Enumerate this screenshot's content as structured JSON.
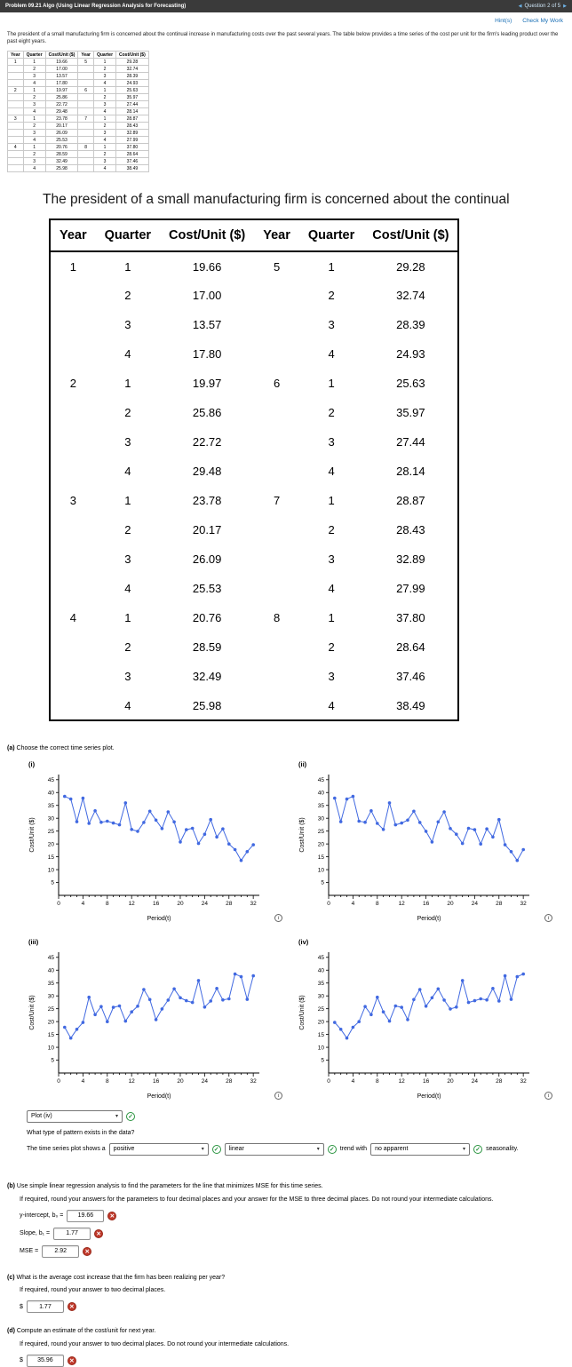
{
  "header": {
    "title": "Problem 09.21 Algo (Using Linear Regression Analysis for Forecasting)",
    "pager_prev": "◀",
    "pager_label": "Question 2 of 5",
    "pager_next": "▶"
  },
  "toolbar": {
    "hints_label": "Hint(s)",
    "check_label": "Check My Work"
  },
  "intro_text": "The president of a small manufacturing firm is concerned about the continual increase in manufacturing costs over the past several years. The table below provides a time series of the cost per unit for the firm's leading product over the past eight years.",
  "zoom_heading": "The president of a small manufacturing firm is concerned about the continual",
  "table": {
    "headers": [
      "Year",
      "Quarter",
      "Cost/Unit ($)",
      "Year",
      "Quarter",
      "Cost/Unit ($)"
    ],
    "rows": [
      [
        "1",
        "1",
        "19.66",
        "5",
        "1",
        "29.28"
      ],
      [
        "",
        "2",
        "17.00",
        "",
        "2",
        "32.74"
      ],
      [
        "",
        "3",
        "13.57",
        "",
        "3",
        "28.39"
      ],
      [
        "",
        "4",
        "17.80",
        "",
        "4",
        "24.93"
      ],
      [
        "2",
        "1",
        "19.97",
        "6",
        "1",
        "25.63"
      ],
      [
        "",
        "2",
        "25.86",
        "",
        "2",
        "35.97"
      ],
      [
        "",
        "3",
        "22.72",
        "",
        "3",
        "27.44"
      ],
      [
        "",
        "4",
        "29.48",
        "",
        "4",
        "28.14"
      ],
      [
        "3",
        "1",
        "23.78",
        "7",
        "1",
        "28.87"
      ],
      [
        "",
        "2",
        "20.17",
        "",
        "2",
        "28.43"
      ],
      [
        "",
        "3",
        "26.09",
        "",
        "3",
        "32.89"
      ],
      [
        "",
        "4",
        "25.53",
        "",
        "4",
        "27.99"
      ],
      [
        "4",
        "1",
        "20.76",
        "8",
        "1",
        "37.80"
      ],
      [
        "",
        "2",
        "28.59",
        "",
        "2",
        "28.64"
      ],
      [
        "",
        "3",
        "32.49",
        "",
        "3",
        "37.46"
      ],
      [
        "",
        "4",
        "25.98",
        "",
        "4",
        "38.49"
      ]
    ]
  },
  "part_a": {
    "label": "(a)",
    "prompt": "Choose the correct time series plot.",
    "answer_dropdown": "Plot (iv)",
    "pattern_question": "What type of pattern exists in the data?",
    "sentence_prefix": "The time series plot shows a",
    "dropdown_1": "positive",
    "dropdown_2": "linear",
    "sentence_mid": "trend with",
    "dropdown_3": "no apparent",
    "sentence_suffix": "seasonality."
  },
  "chart_data": {
    "type": "line",
    "xlabel": "Period(t)",
    "ylabel": "Cost/Unit ($)",
    "x_start": 1,
    "x_ticks": [
      0,
      4,
      8,
      12,
      16,
      20,
      24,
      28,
      32
    ],
    "y_ticks": [
      5,
      10,
      15,
      20,
      25,
      30,
      35,
      40,
      45
    ],
    "xlim": [
      0,
      33
    ],
    "ylim": [
      0,
      47
    ],
    "line_color": "#4169e1",
    "plots": [
      {
        "label": "(i)",
        "values": [
          38.49,
          37.46,
          28.64,
          37.8,
          27.99,
          32.89,
          28.43,
          28.87,
          28.14,
          27.44,
          35.97,
          25.63,
          24.93,
          28.39,
          32.74,
          29.28,
          25.98,
          32.49,
          28.59,
          20.76,
          25.53,
          26.09,
          20.17,
          23.78,
          29.48,
          22.72,
          25.86,
          19.97,
          17.8,
          13.57,
          17.0,
          19.66
        ]
      },
      {
        "label": "(ii)",
        "values": [
          37.8,
          28.64,
          37.46,
          38.49,
          28.87,
          28.43,
          32.89,
          27.99,
          25.63,
          35.97,
          27.44,
          28.14,
          29.28,
          32.74,
          28.39,
          24.93,
          20.76,
          28.59,
          32.49,
          25.98,
          23.78,
          20.17,
          26.09,
          25.53,
          19.97,
          25.86,
          22.72,
          29.48,
          19.66,
          17.0,
          13.57,
          17.8
        ]
      },
      {
        "label": "(iii)",
        "values": [
          17.8,
          13.57,
          17.0,
          19.66,
          29.48,
          22.72,
          25.86,
          19.97,
          25.53,
          26.09,
          20.17,
          23.78,
          25.98,
          32.49,
          28.59,
          20.76,
          24.93,
          28.39,
          32.74,
          29.28,
          28.14,
          27.44,
          35.97,
          25.63,
          27.99,
          32.89,
          28.43,
          28.87,
          38.49,
          37.46,
          28.64,
          37.8
        ]
      },
      {
        "label": "(iv)",
        "values": [
          19.66,
          17.0,
          13.57,
          17.8,
          19.97,
          25.86,
          22.72,
          29.48,
          23.78,
          20.17,
          26.09,
          25.53,
          20.76,
          28.59,
          32.49,
          25.98,
          29.28,
          32.74,
          28.39,
          24.93,
          25.63,
          35.97,
          27.44,
          28.14,
          28.87,
          28.43,
          32.89,
          27.99,
          37.8,
          28.64,
          37.46,
          38.49
        ]
      }
    ]
  },
  "part_b": {
    "label": "(b)",
    "prompt": "Use simple linear regression analysis to find the parameters for the line that minimizes MSE for this time series.",
    "note": "If required, round your answers for the parameters to four decimal places and your answer for the MSE to three decimal places. Do not round your intermediate calculations.",
    "intercept_label": "y-intercept, b₀ =",
    "intercept_value": "19.66",
    "slope_label": "Slope, b₁ =",
    "slope_value": "1.77",
    "mse_label": "MSE =",
    "mse_value": "2.92"
  },
  "part_c": {
    "label": "(c)",
    "prompt": "What is the average cost increase that the firm has been realizing per year?",
    "note": "If required, round your answer to two decimal places.",
    "currency": "$",
    "value": "1.77"
  },
  "part_d": {
    "label": "(d)",
    "prompt": "Compute an estimate of the cost/unit for next year.",
    "note": "If required, round your answer to two decimal places. Do not round your intermediate calculations.",
    "currency": "$",
    "value": "35.96"
  },
  "icons": {
    "incorrect": "✕",
    "correct": "✓",
    "info": "i",
    "dropdown_chevron": "▾"
  }
}
